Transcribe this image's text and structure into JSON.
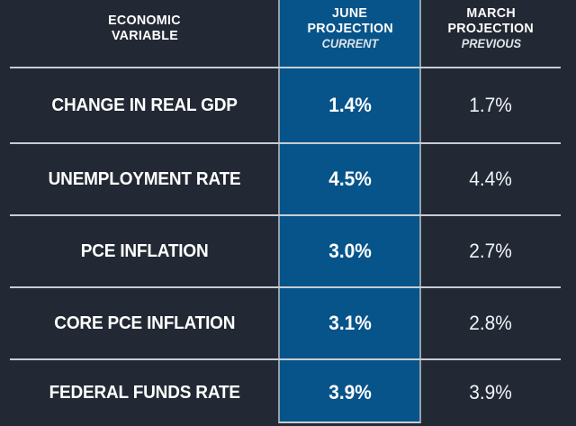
{
  "colors": {
    "background": "#222934",
    "highlight_column": "#07548A",
    "row_line": "#C8CDD3",
    "column_line": "#93A0AD",
    "text": "#FFFFFF",
    "subtext": "#DEE3E8"
  },
  "chart_data": {
    "type": "table",
    "columns": [
      {
        "id": "variable",
        "line1": "ECONOMIC",
        "line2": "VARIABLE",
        "sub": ""
      },
      {
        "id": "june",
        "line1": "JUNE",
        "line2": "PROJECTION",
        "sub": "CURRENT"
      },
      {
        "id": "march",
        "line1": "MARCH",
        "line2": "PROJECTION",
        "sub": "PREVIOUS"
      }
    ],
    "rows": [
      {
        "variable": "CHANGE IN REAL GDP",
        "june": "1.4%",
        "march": "1.7%"
      },
      {
        "variable": "UNEMPLOYMENT RATE",
        "june": "4.5%",
        "march": "4.4%"
      },
      {
        "variable": "PCE INFLATION",
        "june": "3.0%",
        "march": "2.7%"
      },
      {
        "variable": "CORE PCE INFLATION",
        "june": "3.1%",
        "march": "2.8%"
      },
      {
        "variable": "FEDERAL FUNDS RATE",
        "june": "3.9%",
        "march": "3.9%"
      }
    ]
  }
}
